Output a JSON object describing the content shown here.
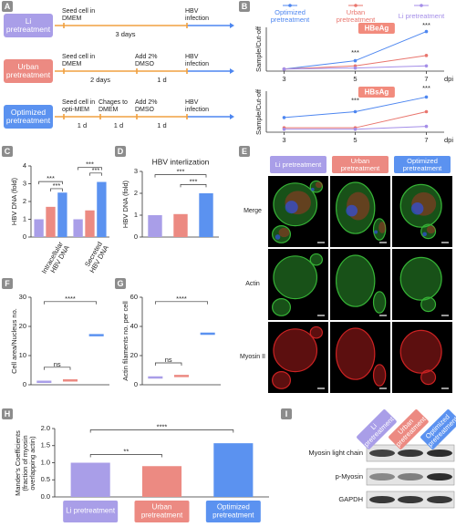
{
  "panel_labels": [
    "A",
    "B",
    "C",
    "D",
    "E",
    "F",
    "G",
    "H",
    "I"
  ],
  "timeline": {
    "rows": [
      {
        "label": "Li pretreatment",
        "color": "#a99ee8",
        "events": [
          "Seed cell in DMEM",
          "HBV infection"
        ],
        "intervals": [
          "3 days"
        ]
      },
      {
        "label": "Urban pretreatment",
        "color": "#ec8a82",
        "events": [
          "Seed cell in DMEM",
          "Add 2% DMSO",
          "HBV infection"
        ],
        "intervals": [
          "2 days",
          "1 d"
        ]
      },
      {
        "label": "Optimized pretreatment",
        "color": "#5b92f0",
        "events": [
          "Seed cell in opti-MEM",
          "Chages to DMEM",
          "Add 2% DMSO",
          "HBV infection"
        ],
        "intervals": [
          "1 d",
          "1 d",
          "1 d"
        ]
      }
    ]
  },
  "chart_data": [
    {
      "type": "line",
      "title": "HBeAg",
      "title_fill": "#f28b7d",
      "x": [
        3,
        5,
        7
      ],
      "xlim": [
        2.5,
        7.5
      ],
      "xticks": [
        3,
        5,
        7
      ],
      "xlabel": "dpi",
      "ylabel": "Sample/Cut-off",
      "ylim": [
        0,
        42
      ],
      "series": [
        {
          "name": "Optimized pretreatment",
          "color": "#4d86f0",
          "values": [
            2,
            10,
            38
          ]
        },
        {
          "name": "Urban pretreatment",
          "color": "#e9756d",
          "values": [
            2,
            5,
            15
          ]
        },
        {
          "name": "Li pretreatment",
          "color": "#a48ee8",
          "values": [
            2,
            3,
            5
          ]
        }
      ],
      "annotations": [
        "***",
        "***"
      ]
    },
    {
      "type": "line",
      "title": "HBsAg",
      "title_fill": "#f28b7d",
      "x": [
        3,
        5,
        7
      ],
      "xlim": [
        2.5,
        7.5
      ],
      "xticks": [
        3,
        5,
        7
      ],
      "xlabel": "dpi",
      "ylabel": "Sample/Cut-off",
      "ylim": [
        0,
        14
      ],
      "series": [
        {
          "color": "#4d86f0",
          "values": [
            5,
            7,
            12
          ]
        },
        {
          "color": "#e9756d",
          "values": [
            1.5,
            1.5,
            7
          ]
        },
        {
          "color": "#a48ee8",
          "values": [
            1,
            1,
            2
          ]
        }
      ],
      "annotations": [
        "***",
        "***"
      ]
    },
    {
      "type": "bar",
      "ylabel": "HBV DNA (fold)",
      "ylim": [
        0,
        4
      ],
      "yticks": [
        0,
        1,
        2,
        3,
        4
      ],
      "categories": [
        "Intracellular HBV DNA",
        "Secreted HBV DNA"
      ],
      "series": [
        {
          "color": "#a99ee8",
          "values": [
            1.0,
            1.0
          ]
        },
        {
          "color": "#ec8a82",
          "values": [
            1.7,
            1.5
          ]
        },
        {
          "color": "#5b92f0",
          "values": [
            2.5,
            3.1
          ]
        }
      ],
      "annotations": [
        "***",
        "***",
        "***",
        "***"
      ]
    },
    {
      "type": "bar",
      "title": "HBV interlization",
      "ylabel": "HBV DNA (fold)",
      "ylim": [
        0,
        3
      ],
      "yticks": [
        0,
        1,
        2,
        3
      ],
      "values": [
        1.0,
        1.05,
        2.0
      ],
      "colors": [
        "#a99ee8",
        "#ec8a82",
        "#5b92f0"
      ],
      "annotations": [
        "***",
        "***"
      ]
    },
    {
      "type": "dot",
      "ylabel": "Cell area/Nucleus no.",
      "ylim": [
        0,
        30
      ],
      "yticks": [
        0,
        10,
        20,
        30
      ],
      "values": [
        1,
        1.5,
        17
      ],
      "colors": [
        "#a99ee8",
        "#ec8a82",
        "#5b92f0"
      ],
      "annotations": [
        "ns",
        "****"
      ]
    },
    {
      "type": "dot",
      "ylabel": "Actin filaments no. per cell",
      "ylim": [
        0,
        60
      ],
      "yticks": [
        0,
        20,
        40,
        60
      ],
      "values": [
        5,
        6,
        35
      ],
      "colors": [
        "#a99ee8",
        "#ec8a82",
        "#5b92f0"
      ],
      "annotations": [
        "ns",
        "****"
      ]
    },
    {
      "type": "bar",
      "ylabel": "Mander's Coefficients (fraction of myosin overlapping actin)",
      "ylim": [
        0,
        2
      ],
      "yticks": [
        {
          "value": 0,
          "label": "0.0"
        },
        {
          "value": 0.5,
          "label": "0.5"
        },
        {
          "value": 1,
          "label": "1.0"
        },
        {
          "value": 1.5,
          "label": "1.5"
        },
        {
          "value": 2,
          "label": "2.0"
        }
      ],
      "categories": [
        "Li pretreatment",
        "Urban pretreatment",
        "Optimized pretreatment"
      ],
      "values": [
        1.0,
        0.9,
        1.57
      ],
      "colors": [
        "#a99ee8",
        "#ec8a82",
        "#5b92f0"
      ],
      "annotations": [
        "**",
        "****"
      ]
    }
  ],
  "micrograph": {
    "columns": [
      "Li pretreatment",
      "Urban pretreatment",
      "Optimized pretreatment"
    ],
    "colors": [
      "#a99ee8",
      "#ec8a82",
      "#5b92f0"
    ],
    "rows": [
      "Merge",
      "Actin",
      "Myosin II"
    ]
  },
  "blot": {
    "columns": [
      "Li pretreatment",
      "Urban pretreatment",
      "Optimized pretreatment"
    ],
    "colors": [
      "#a99ee8",
      "#ec8a82",
      "#5b92f0"
    ],
    "rows": [
      "Myosin light chain",
      "p-Myosin",
      "GAPDH"
    ]
  }
}
